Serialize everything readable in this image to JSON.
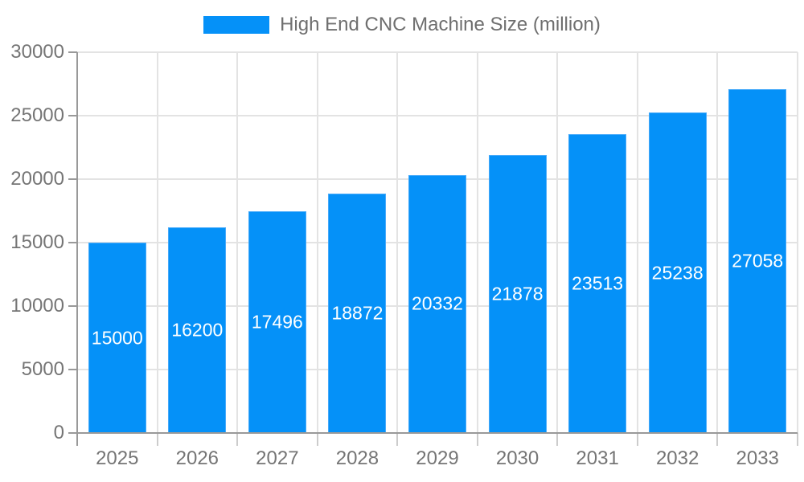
{
  "legend": {
    "label": "High End CNC Machine Size (million)"
  },
  "chart_data": {
    "type": "bar",
    "title": "High End CNC Machine Size (million)",
    "categories": [
      "2025",
      "2026",
      "2027",
      "2028",
      "2029",
      "2030",
      "2031",
      "2032",
      "2033"
    ],
    "values": [
      15000,
      16200,
      17496,
      18872,
      20332,
      21878,
      23513,
      25238,
      27058
    ],
    "series_name": "High End CNC Machine Size (million)",
    "xlabel": "",
    "ylabel": "",
    "ylim": [
      0,
      30000
    ],
    "yticks": [
      0,
      5000,
      10000,
      15000,
      20000,
      25000,
      30000
    ],
    "grid": true,
    "legend_position": "top",
    "value_labels": "inside-center"
  },
  "colors": {
    "bar": "#0591f8",
    "bar_border": "#47aafa",
    "grid": "#e3e3e3",
    "axis": "#999999",
    "boundary_tick": "#cccccc",
    "tick_label": "#757575",
    "legend_text": "#6f6f6f",
    "value_label": "#ffffff",
    "background": "#ffffff"
  }
}
